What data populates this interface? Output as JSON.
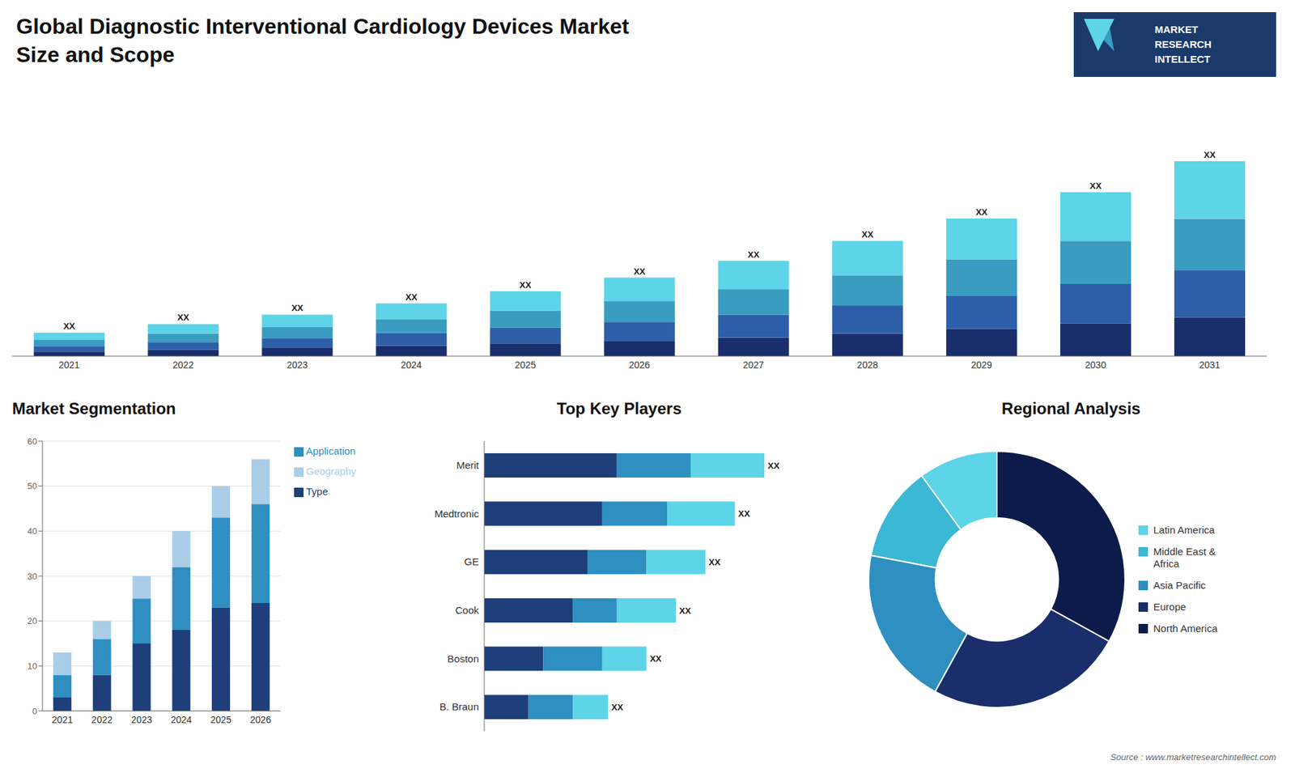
{
  "title": "Global Diagnostic Interventional Cardiology Devices Market",
  "subtitle": "Size and Scope",
  "annotations": [
    "MARKET",
    "RESEARCH",
    "INTELLECT",
    "Source : www.marketresearchintellect.com"
  ],
  "chart_data": [
    {
      "type": "bar",
      "stacked": true,
      "categories": [
        "2021",
        "2022",
        "2023",
        "2024",
        "2025",
        "2026",
        "2027",
        "2028",
        "2029",
        "2030",
        "2031"
      ],
      "series": [
        {
          "color": "#1a2e6b",
          "values": [
            1.0,
            1.4,
            1.8,
            2.3,
            2.8,
            3.4,
            4.1,
            5.0,
            6.0,
            7.2,
            8.6
          ]
        },
        {
          "color": "#2d5fa8",
          "values": [
            1.2,
            1.7,
            2.2,
            2.8,
            3.5,
            4.2,
            5.1,
            6.2,
            7.4,
            8.8,
            10.5
          ]
        },
        {
          "color": "#3a9cc1",
          "values": [
            1.4,
            1.9,
            2.5,
            3.1,
            3.8,
            4.6,
            5.6,
            6.7,
            8.0,
            9.5,
            11.3
          ]
        },
        {
          "color": "#5dd4e8",
          "values": [
            1.6,
            2.1,
            2.7,
            3.5,
            4.3,
            5.2,
            6.3,
            7.6,
            9.1,
            10.8,
            12.8
          ],
          "value_labels": [
            "XX",
            "XX",
            "XX",
            "XX",
            "XX",
            "XX",
            "XX",
            "XX",
            "XX",
            "XX",
            "XX"
          ]
        }
      ],
      "ylim": [
        0,
        55.296
      ],
      "tick_labels": "x"
    },
    {
      "type": "bar",
      "stacked": true,
      "title": "Market Segmentation",
      "categories": [
        "2021",
        "2022",
        "2023",
        "2024",
        "2025",
        "2026"
      ],
      "series": [
        {
          "name": "Type",
          "color": "#1e3f7a",
          "values": [
            3,
            8,
            15,
            18,
            23,
            24
          ]
        },
        {
          "name": "Application",
          "color": "#2e8fc0",
          "values": [
            5,
            8,
            10,
            14,
            20,
            22
          ]
        },
        {
          "name": "Geography",
          "color": "#aacde8",
          "values": [
            5,
            4,
            5,
            8,
            7,
            10
          ]
        }
      ],
      "ylim": [
        0,
        60
      ],
      "yticks": [
        0,
        10,
        20,
        30,
        40,
        50,
        60
      ],
      "grid": true,
      "legend": "right"
    },
    {
      "type": "bar",
      "stacked": true,
      "orientation": "horizontal",
      "title": "Top Key Players",
      "categories": [
        "Merit",
        "Medtronic",
        "GE",
        "Cook",
        "Boston",
        "B. Braun"
      ],
      "series": [
        {
          "color": "#1e3f7a",
          "values": [
            4.5,
            4.0,
            3.5,
            3.0,
            2.0,
            1.5
          ]
        },
        {
          "color": "#2e8fc0",
          "values": [
            2.5,
            2.2,
            2.0,
            1.5,
            2.0,
            1.5
          ]
        },
        {
          "color": "#5dd4e8",
          "values": [
            2.5,
            2.3,
            2.0,
            2.0,
            1.5,
            1.2
          ],
          "value_labels": [
            "XX",
            "XX",
            "XX",
            "XX",
            "XX",
            "XX"
          ]
        }
      ],
      "xlim": [
        0,
        11.21
      ],
      "tick_labels": "y"
    },
    {
      "type": "donut",
      "title": "Regional Analysis",
      "categories": [
        "Latin America",
        "Middle East &\nAfrica",
        "Asia Pacific",
        "Europe",
        "North America"
      ],
      "values": [
        10,
        12,
        20,
        25,
        33
      ],
      "colors": [
        "#5dd4e8",
        "#3ab8d4",
        "#2e8fc0",
        "#1a2e6b",
        "#0d1b4b"
      ],
      "legend": "right"
    }
  ]
}
